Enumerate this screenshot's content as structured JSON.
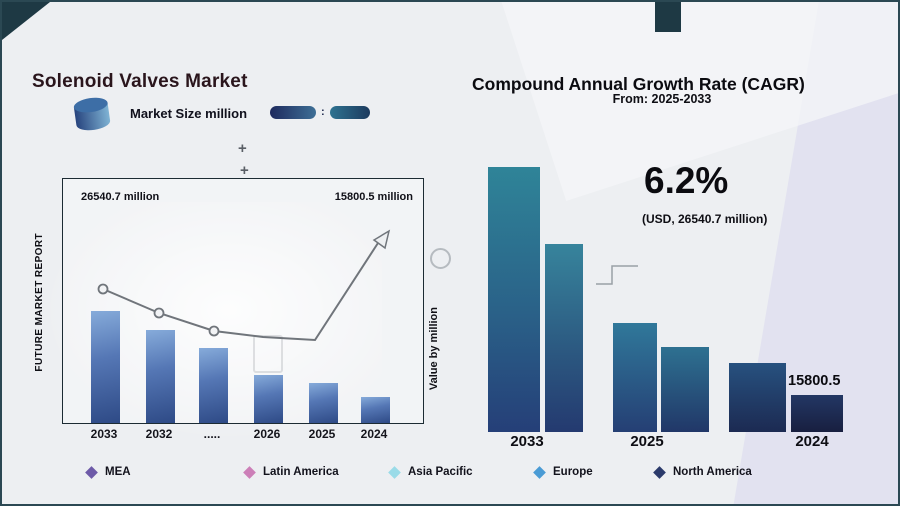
{
  "header": {
    "title": "Solenoid Valves  Market",
    "market_size_label": "Market Size million"
  },
  "decorations": {
    "plus_top": "+",
    "plus_bottom": "+",
    "pill_separator": ":"
  },
  "chart_data": [
    {
      "type": "bar",
      "title": "Solenoid Valves Market - Market Size million",
      "ylabel": "FUTURE MARKET REPORT",
      "categories": [
        "2033",
        "2032",
        ".....",
        "2026",
        "2025",
        "2024"
      ],
      "bar_heights_rel": [
        100,
        83,
        67,
        43,
        36,
        23
      ],
      "values_labeled": {
        "2033": "26540.7 million",
        "2024": "15800.5 million"
      },
      "trend_note": "marker line descends from 2033 toward 2026 then rises as an arrow to the upper right",
      "legend_position": "none",
      "grid": false
    },
    {
      "type": "bar",
      "title": "Compound Annual Growth Rate (CAGR)",
      "subtitle": "From: 2025-2033",
      "cagr": "6.2%",
      "cagr_note": "(USD, 26540.7 million)",
      "ylabel": "Value by million",
      "categories": [
        "2033",
        "2025",
        "2024"
      ],
      "series": [
        {
          "name": "primary",
          "heights_rel": [
            100,
            41,
            26
          ]
        },
        {
          "name": "secondary",
          "heights_rel": [
            71,
            32,
            14
          ]
        }
      ],
      "annotations": [
        "15800.5"
      ],
      "legend_position": "bottom",
      "grid": false
    }
  ],
  "legend": [
    {
      "label": "MEA",
      "color": "#6d5aa8"
    },
    {
      "label": "Latin America",
      "color": "#cc7fb8"
    },
    {
      "label": "Asia Pacific",
      "color": "#9adbe8"
    },
    {
      "label": "Europe",
      "color": "#4a9bd5"
    },
    {
      "label": "North America",
      "color": "#2b3a6b"
    }
  ],
  "colors": {
    "accent_teal": "#1e3944",
    "bar_blue_dark": "#2f4b88",
    "bar_teal": "#2f8498",
    "lavender_panel": "#e2e2f0"
  }
}
